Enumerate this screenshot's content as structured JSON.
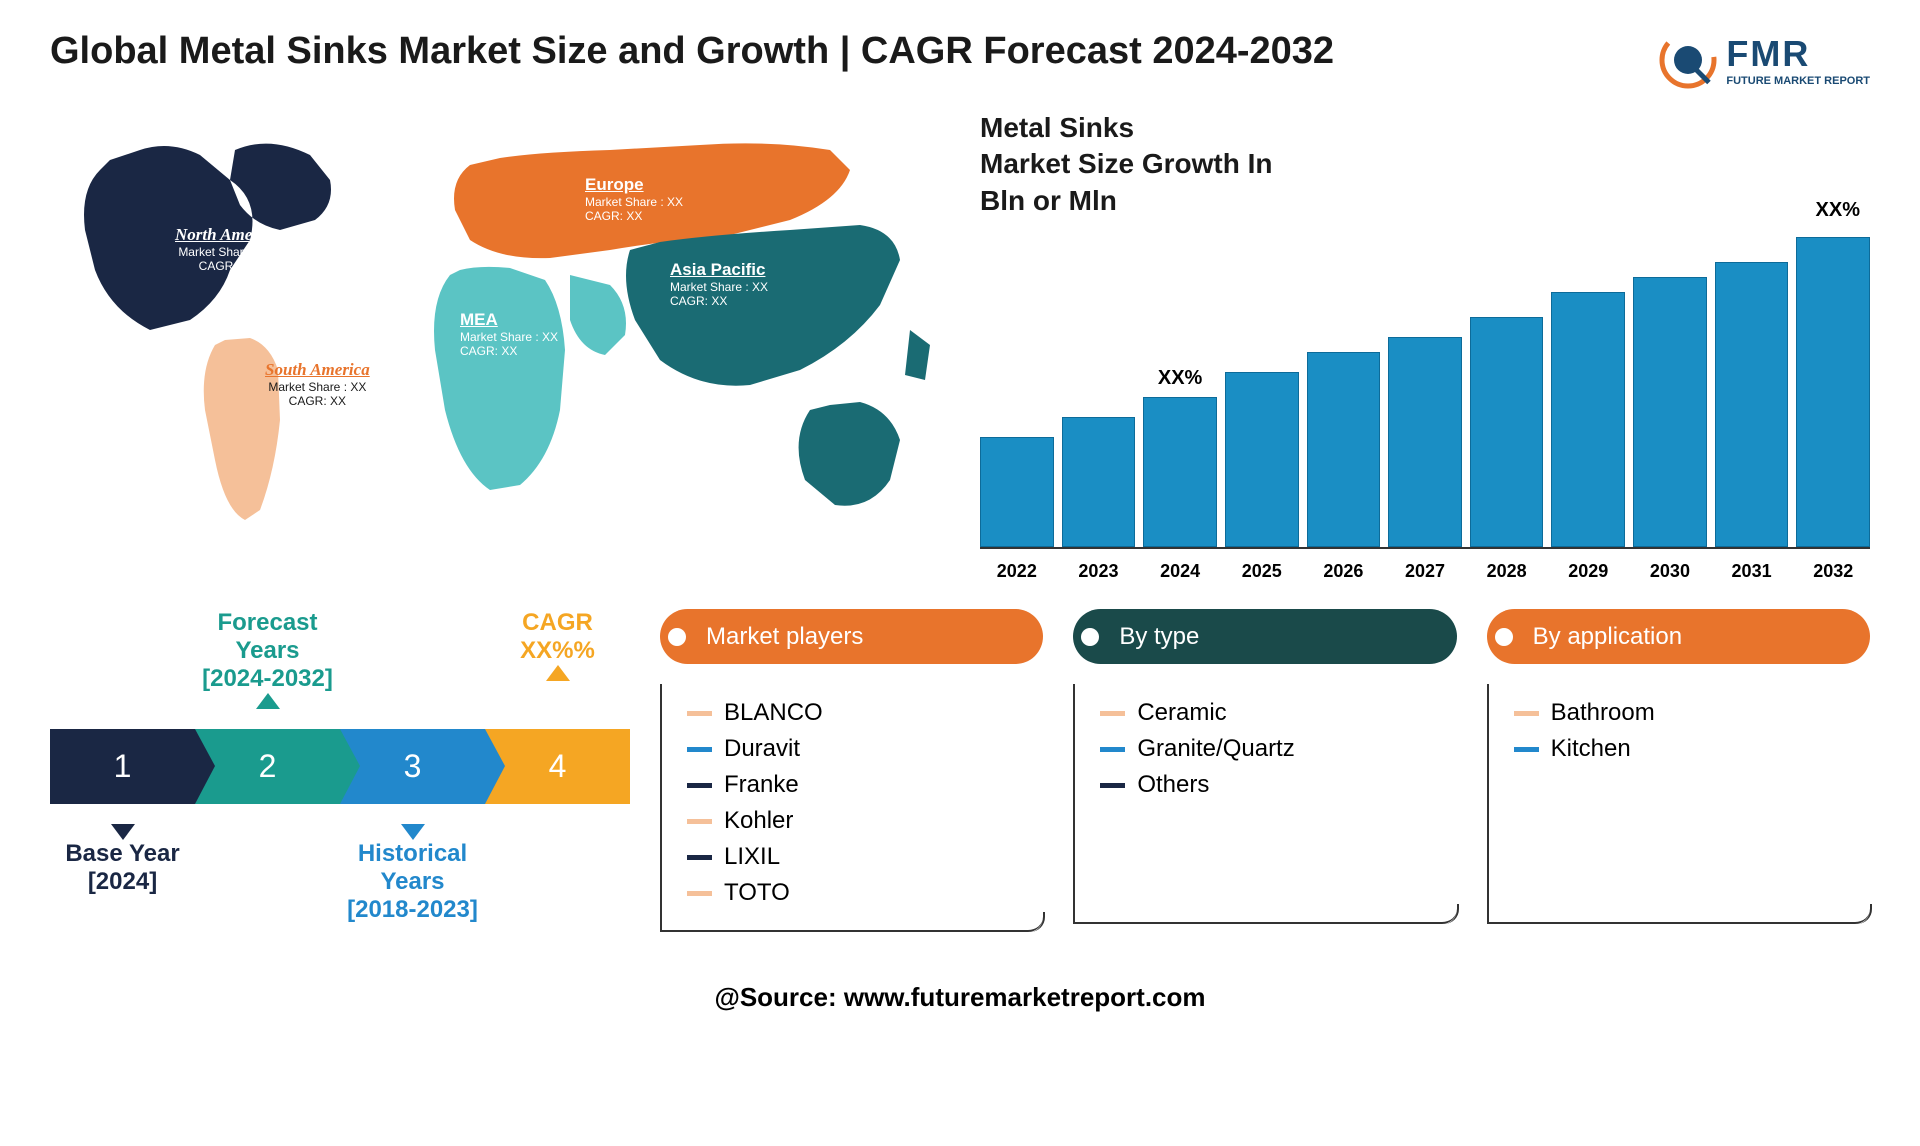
{
  "title": "Global Metal Sinks Market Size and Growth | CAGR Forecast 2024-2032",
  "logo": {
    "main": "FMR",
    "sub": "FUTURE MARKET REPORT"
  },
  "regions": [
    {
      "name": "North America",
      "share": "Market Share : XX",
      "cagr": "CAGR: XX",
      "color": "#1a2744"
    },
    {
      "name": "South America",
      "share": "Market Share : XX",
      "cagr": "CAGR: XX",
      "color": "#f5c099"
    },
    {
      "name": "Europe",
      "share": "Market Share : XX",
      "cagr": "CAGR: XX",
      "color": "#e8742c"
    },
    {
      "name": "MEA",
      "share": "Market Share : XX",
      "cagr": "CAGR: XX",
      "color": "#5bc4c4"
    },
    {
      "name": "Asia Pacific",
      "share": "Market Share : XX",
      "cagr": "CAGR: XX",
      "color": "#1a6b73"
    }
  ],
  "chart": {
    "title_l1": "Metal Sinks",
    "title_l2": "Market Size Growth In",
    "title_l3": "Bln or Mln",
    "years": [
      "2022",
      "2023",
      "2024",
      "2025",
      "2026",
      "2027",
      "2028",
      "2029",
      "2030",
      "2031",
      "2032"
    ],
    "values": [
      110,
      130,
      150,
      175,
      195,
      210,
      230,
      255,
      270,
      285,
      310
    ],
    "bar_color": "#1a8ec4",
    "border_color": "#0d6b99",
    "label_2024": "XX%",
    "label_2032": "XX%",
    "max": 320
  },
  "timeline": {
    "forecast": {
      "label": "Forecast Years",
      "range": "[2024-2032]",
      "color": "#1a9b8e"
    },
    "cagr": {
      "label": "CAGR",
      "value": "XX%%",
      "color": "#f5a623"
    },
    "base": {
      "label": "Base Year",
      "range": "[2024]",
      "color": "#1a2744"
    },
    "historical": {
      "label": "Historical Years",
      "range": "[2018-2023]",
      "color": "#2288cc"
    },
    "segments": [
      "1",
      "2",
      "3",
      "4"
    ]
  },
  "columns": {
    "players": {
      "title": "Market players",
      "pill_color": "#e8742c",
      "items": [
        {
          "label": "BLANCO",
          "dash": "#f5c099"
        },
        {
          "label": "Duravit",
          "dash": "#2288cc"
        },
        {
          "label": "Franke",
          "dash": "#1a2744"
        },
        {
          "label": "Kohler",
          "dash": "#f5c099"
        },
        {
          "label": "LIXIL",
          "dash": "#1a2744"
        },
        {
          "label": "TOTO",
          "dash": "#f5c099"
        }
      ]
    },
    "type": {
      "title": "By type",
      "pill_color": "#1a4a4a",
      "items": [
        {
          "label": "Ceramic",
          "dash": "#f5c099"
        },
        {
          "label": "Granite/Quartz",
          "dash": "#2288cc"
        },
        {
          "label": "Others",
          "dash": "#1a2744"
        }
      ]
    },
    "application": {
      "title": "By application",
      "pill_color": "#e8742c",
      "items": [
        {
          "label": "Bathroom",
          "dash": "#f5c099"
        },
        {
          "label": "Kitchen",
          "dash": "#2288cc"
        }
      ]
    }
  },
  "source": "@Source: www.futuremarketreport.com"
}
